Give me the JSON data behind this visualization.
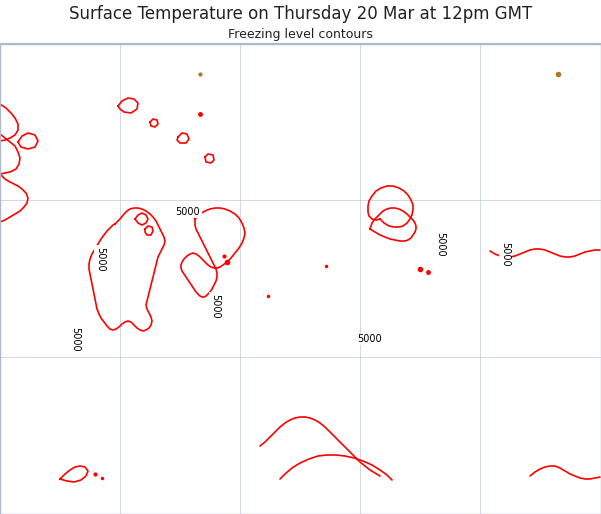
{
  "title": "Surface Temperature on Thursday 20 Mar at 12pm GMT",
  "subtitle": "Freezing level contours",
  "map_bg_color": "#dce2f0",
  "border_color": "#b0b8cc",
  "contour_color": "#ff0000",
  "label_fontsize": 7,
  "title_fontsize": 12,
  "subtitle_fontsize": 9,
  "grid_color": "#c0c8dc",
  "grid_linewidth": 0.5,
  "title_color": "#222222",
  "header_bg": "#ffffff",
  "contour_lw": 1.2
}
